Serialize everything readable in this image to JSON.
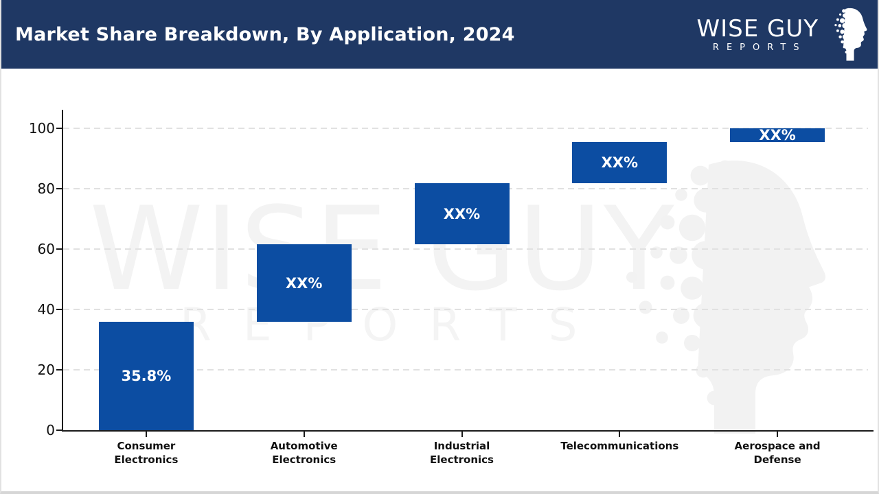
{
  "header": {
    "title": "Market Share Breakdown, By Application, 2024",
    "logo_line1": "WISE GUY",
    "logo_line2": "REPORTS"
  },
  "watermark": {
    "line1": "WISE GUY",
    "line2": "REPORTS"
  },
  "colors": {
    "header_bg": "#1f3864",
    "bar": "#0c4da2",
    "bar_label": "#ffffff",
    "gridline": "#e1e1e1",
    "axis": "#1a1a1a",
    "watermark": "#f2f2f2"
  },
  "chart_data": {
    "type": "bar",
    "subtype": "floating-waterfall",
    "title": "Market Share Breakdown, By Application, 2024",
    "xlabel": "",
    "ylabel": "",
    "ylim": [
      0,
      106
    ],
    "yticks": [
      0,
      20,
      40,
      60,
      80,
      100
    ],
    "grid": "horizontal-dashed",
    "legend": "none",
    "categories": [
      "Consumer Electronics",
      "Automotive Electronics",
      "Industrial Electronics",
      "Telecommunications",
      "Aerospace and Defense"
    ],
    "category_lines": [
      [
        "Consumer",
        "Electronics"
      ],
      [
        "Automotive",
        "Electronics"
      ],
      [
        "Industrial",
        "Electronics"
      ],
      [
        "Telecommunications"
      ],
      [
        "Aerospace and",
        "Defense"
      ]
    ],
    "segments": [
      {
        "category": "Consumer Electronics",
        "start": 0,
        "end": 35.8,
        "label": "35.8%"
      },
      {
        "category": "Automotive Electronics",
        "start": 35.8,
        "end": 61.5,
        "label": "XX%"
      },
      {
        "category": "Industrial Electronics",
        "start": 61.5,
        "end": 81.8,
        "label": "XX%"
      },
      {
        "category": "Telecommunications",
        "start": 81.8,
        "end": 95.5,
        "label": "XX%"
      },
      {
        "category": "Aerospace and Defense",
        "start": 95.5,
        "end": 100,
        "label": "XX%"
      }
    ]
  }
}
